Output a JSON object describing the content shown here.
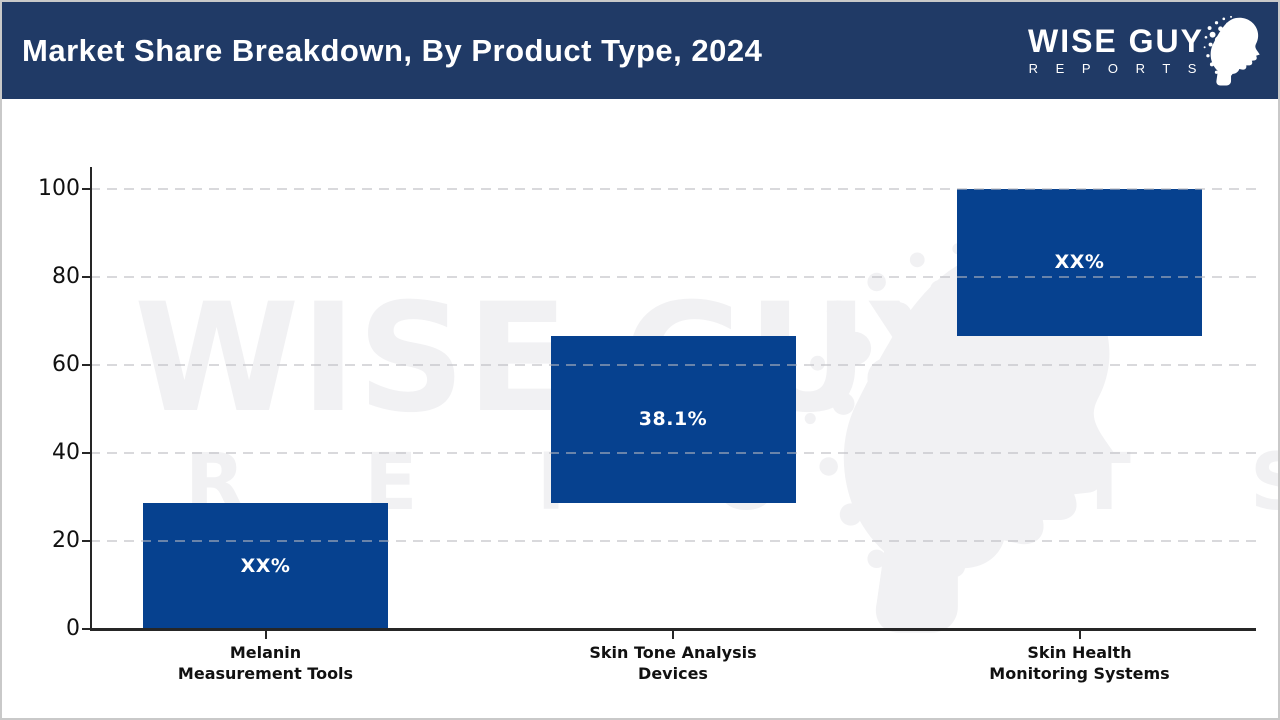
{
  "header": {
    "title": "Market Share Breakdown, By Product Type, 2024",
    "logo": {
      "name": "WISE GUY",
      "sub": "R E P O R T S"
    }
  },
  "watermark": {
    "name": "WISE GUY",
    "sub": "R E P O R T S"
  },
  "chart_data": {
    "type": "bar",
    "variant": "stacked-waterfall-segments",
    "title": "Market Share Breakdown, By Product Type, 2024",
    "categories": [
      "Melanin Measurement Tools",
      "Skin Tone Analysis Devices",
      "Skin Health Monitoring Systems"
    ],
    "category_lines": [
      [
        "Melanin",
        "Measurement Tools"
      ],
      [
        "Skin Tone Analysis",
        "Devices"
      ],
      [
        "Skin Health",
        "Monitoring Systems"
      ]
    ],
    "segments": [
      {
        "start": 0,
        "end": 28.6,
        "value": 28.6,
        "label": "XX%"
      },
      {
        "start": 28.6,
        "end": 66.7,
        "value": 38.1,
        "label": "38.1%"
      },
      {
        "start": 66.7,
        "end": 100,
        "value": 33.3,
        "label": "XX%"
      }
    ],
    "yticks": [
      0,
      20,
      40,
      60,
      80,
      100
    ],
    "ylim": [
      0,
      100
    ],
    "xlabel": "",
    "ylabel": "",
    "grid": "dashed-horizontal",
    "legend": "none",
    "bar_color": "#06418f"
  },
  "colors": {
    "header_bg": "#203a66",
    "bar_blue": "#06418f",
    "watermark": "#f1f1f3",
    "axis": "#262626",
    "grid": "#c9c9cf",
    "page_border": "#c9c9c9",
    "tick_text": "#111111",
    "bar_label_text": "#ffffff"
  }
}
